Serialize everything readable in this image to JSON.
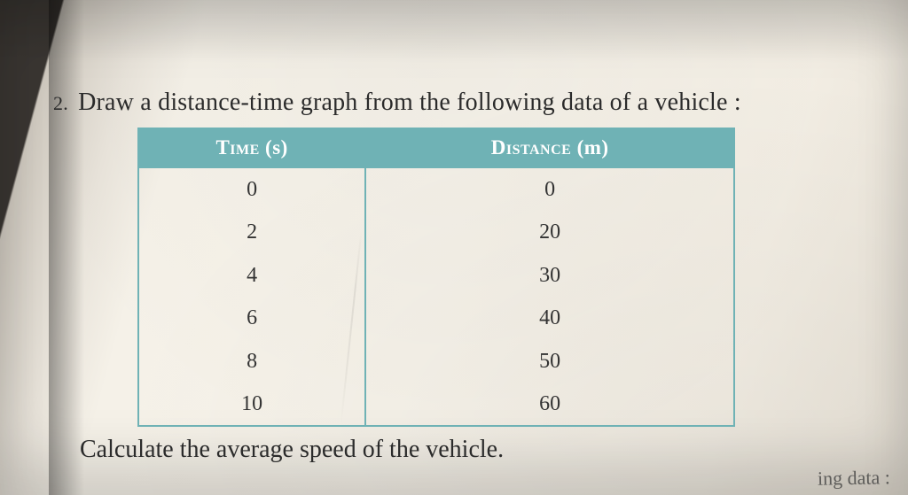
{
  "question": {
    "number": "2.",
    "text": "Draw a distance-time graph from the following data of a vehicle :"
  },
  "table": {
    "columns": [
      {
        "label_main": "Time",
        "unit": "(s)"
      },
      {
        "label_main": "Distance",
        "unit": "(m)"
      }
    ],
    "rows": [
      [
        "0",
        "0"
      ],
      [
        "2",
        "20"
      ],
      [
        "4",
        "30"
      ],
      [
        "6",
        "40"
      ],
      [
        "8",
        "50"
      ],
      [
        "10",
        "60"
      ]
    ],
    "header_bg": "#6fb2b5",
    "header_fg": "#ffffff",
    "border_color": "#6fb2b5"
  },
  "footer": {
    "text": "Calculate the average speed of the vehicle."
  },
  "corner_fragment": "ing data :"
}
